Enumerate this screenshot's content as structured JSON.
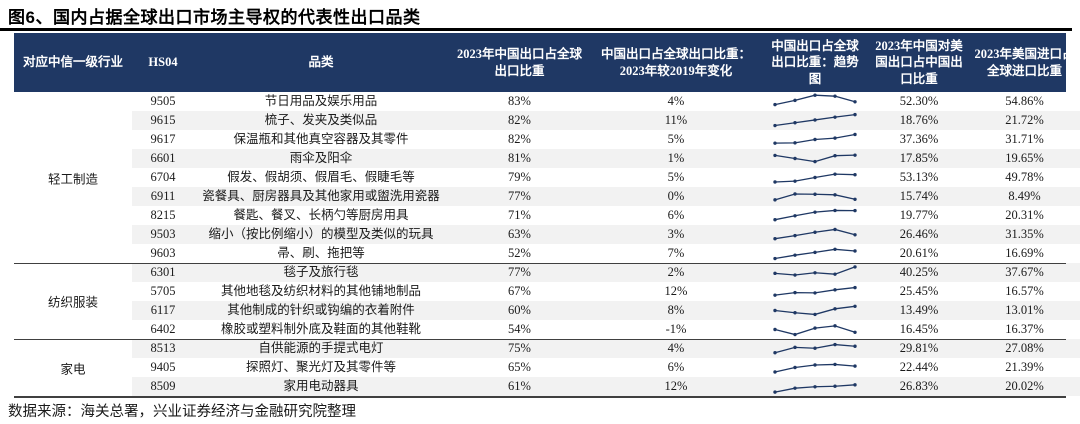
{
  "figure": {
    "title": "图6、国内占据全球出口市场主导权的代表性出口品类",
    "source": "数据来源：海关总署，兴业证券经济与金融研究院整理"
  },
  "colors": {
    "header_bg": "#1f3864",
    "header_text": "#ffffff",
    "row_stripe": "#f2f2f2",
    "sparkline": "#1f3864",
    "separator": "#404040"
  },
  "table": {
    "headers": [
      "对应中信一级行业",
      "HS04",
      "品类",
      "2023年中国出口占全球出口比重",
      "中国出口占全球出口比重：2023年较2019年变化",
      "中国出口占全球出口比重：趋势图",
      "2023年中国对美国出口占中国出口比重",
      "2023年美国进口占全球进口比重"
    ],
    "groups": [
      {
        "label": "轻工制造",
        "count": 9
      },
      {
        "label": "纺织服装",
        "count": 4
      },
      {
        "label": "家电",
        "count": 3
      }
    ],
    "rows": [
      {
        "hs": "9505",
        "name": "节日用品及娱乐用品",
        "share": "83%",
        "change": "4%",
        "trend": [
          28,
          58,
          95,
          88,
          48
        ],
        "us_exp": "52.30%",
        "us_imp": "54.86%"
      },
      {
        "hs": "9615",
        "name": "梳子、发夹及类似品",
        "share": "82%",
        "change": "11%",
        "trend": [
          14,
          34,
          54,
          74,
          92
        ],
        "us_exp": "18.76%",
        "us_imp": "21.72%"
      },
      {
        "hs": "9617",
        "name": "保温瓶和其他真空容器及其零件",
        "share": "82%",
        "change": "5%",
        "trend": [
          24,
          26,
          50,
          60,
          86
        ],
        "us_exp": "37.36%",
        "us_imp": "31.71%"
      },
      {
        "hs": "6601",
        "name": "雨伞及阳伞",
        "share": "81%",
        "change": "1%",
        "trend": [
          72,
          50,
          28,
          70,
          74
        ],
        "us_exp": "17.85%",
        "us_imp": "19.65%"
      },
      {
        "hs": "6704",
        "name": "假发、假胡须、假眉毛、假睫毛等",
        "share": "79%",
        "change": "5%",
        "trend": [
          18,
          24,
          50,
          74,
          70
        ],
        "us_exp": "53.13%",
        "us_imp": "49.78%"
      },
      {
        "hs": "6911",
        "name": "瓷餐具、厨房器具及其他家用或盥洗用瓷器",
        "share": "77%",
        "change": "0%",
        "trend": [
          26,
          68,
          66,
          62,
          30
        ],
        "us_exp": "15.74%",
        "us_imp": "8.49%"
      },
      {
        "hs": "8215",
        "name": "餐匙、餐叉、长柄勺等厨房用具",
        "share": "71%",
        "change": "6%",
        "trend": [
          20,
          48,
          74,
          86,
          85
        ],
        "us_exp": "19.77%",
        "us_imp": "20.31%"
      },
      {
        "hs": "9503",
        "name": "缩小（按比例缩小）的模型及类似的玩具",
        "share": "63%",
        "change": "3%",
        "trend": [
          20,
          42,
          66,
          86,
          48
        ],
        "us_exp": "26.46%",
        "us_imp": "31.35%"
      },
      {
        "hs": "9603",
        "name": "帚、刷、拖把等",
        "share": "52%",
        "change": "7%",
        "trend": [
          14,
          38,
          58,
          80,
          68
        ],
        "us_exp": "20.61%",
        "us_imp": "16.69%"
      },
      {
        "hs": "6301",
        "name": "毯子及旅行毯",
        "share": "77%",
        "change": "2%",
        "trend": [
          44,
          32,
          48,
          38,
          90
        ],
        "us_exp": "40.25%",
        "us_imp": "37.67%"
      },
      {
        "hs": "5705",
        "name": "其他地毯及纺织材料的其他铺地制品",
        "share": "67%",
        "change": "12%",
        "trend": [
          24,
          42,
          40,
          62,
          78
        ],
        "us_exp": "25.45%",
        "us_imp": "16.57%"
      },
      {
        "hs": "6117",
        "name": "其他制成的针织或钩编的衣着附件",
        "share": "60%",
        "change": "8%",
        "trend": [
          50,
          34,
          22,
          62,
          80
        ],
        "us_exp": "13.49%",
        "us_imp": "13.01%"
      },
      {
        "hs": "6402",
        "name": "橡胶或塑料制外底及鞋面的其他鞋靴",
        "share": "54%",
        "change": "-1%",
        "trend": [
          50,
          14,
          60,
          76,
          30
        ],
        "us_exp": "16.45%",
        "us_imp": "16.37%"
      },
      {
        "hs": "8513",
        "name": "自供能源的手提式电灯",
        "share": "75%",
        "change": "4%",
        "trend": [
          20,
          58,
          52,
          78,
          66
        ],
        "us_exp": "29.81%",
        "us_imp": "27.08%"
      },
      {
        "hs": "9405",
        "name": "探照灯、聚光灯及其零件等",
        "share": "65%",
        "change": "6%",
        "trend": [
          18,
          50,
          68,
          72,
          60
        ],
        "us_exp": "22.44%",
        "us_imp": "21.39%"
      },
      {
        "hs": "8509",
        "name": "家用电动器具",
        "share": "61%",
        "change": "12%",
        "trend": [
          10,
          38,
          48,
          52,
          62
        ],
        "us_exp": "26.83%",
        "us_imp": "20.02%"
      }
    ]
  }
}
